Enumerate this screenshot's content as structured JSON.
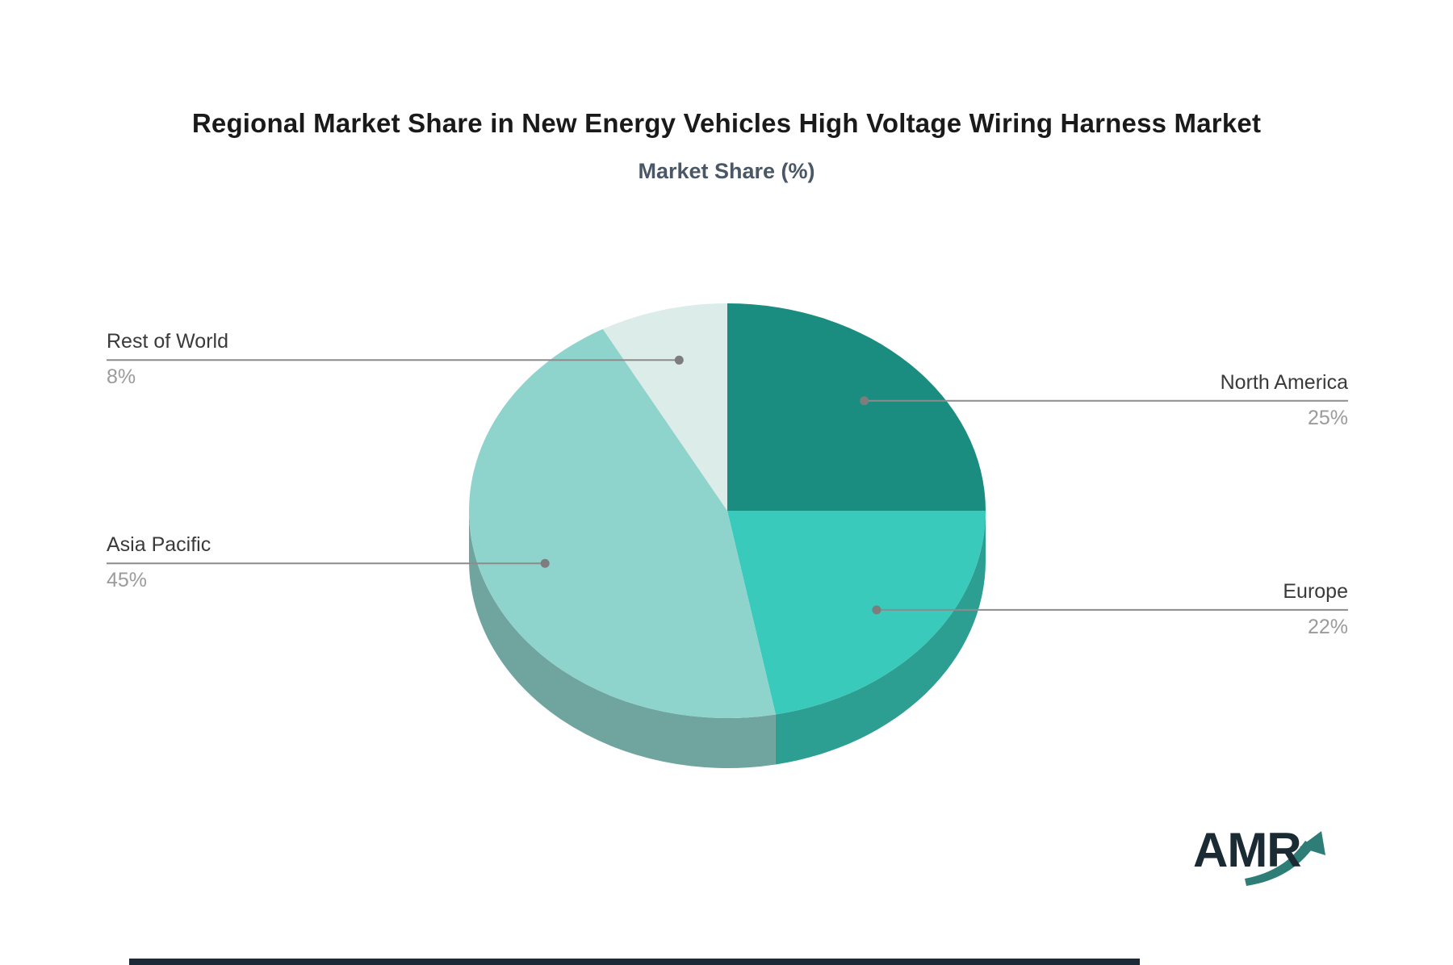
{
  "header": {
    "title": "Regional Market Share in New Energy Vehicles High Voltage Wiring Harness Market",
    "subtitle": "Market Share (%)"
  },
  "logo": {
    "text": "AMR"
  },
  "colors": {
    "connector_line": "#8c8c8c",
    "connector_dot": "#7d7d7d",
    "label_name": "#3a3a3a",
    "label_percent": "#9b9b9d",
    "bottom_bar": "#1d2935",
    "logo_text": "#1b2b33",
    "logo_arrow": "#2e7e77"
  },
  "chart_data": {
    "type": "pie",
    "title": "Regional Market Share in New Energy Vehicles High Voltage Wiring Harness Market",
    "subtitle": "Market Share (%)",
    "unit": "%",
    "direction": "clockwise",
    "start_angle_deg": 0,
    "effect_3d": true,
    "legend": "none",
    "label_style": "callout-lines-with-dots",
    "slices": [
      {
        "label": "North America",
        "value": 25,
        "display": "25%",
        "color": "#1A8C80",
        "side": "right"
      },
      {
        "label": "Europe",
        "value": 22,
        "display": "22%",
        "color": "#39CABB",
        "side": "right"
      },
      {
        "label": "Asia Pacific",
        "value": 45,
        "display": "45%",
        "color": "#8FD4CC",
        "side": "left"
      },
      {
        "label": "Rest of World",
        "value": 8,
        "display": "8%",
        "color": "#DCECE9",
        "side": "left"
      }
    ]
  }
}
